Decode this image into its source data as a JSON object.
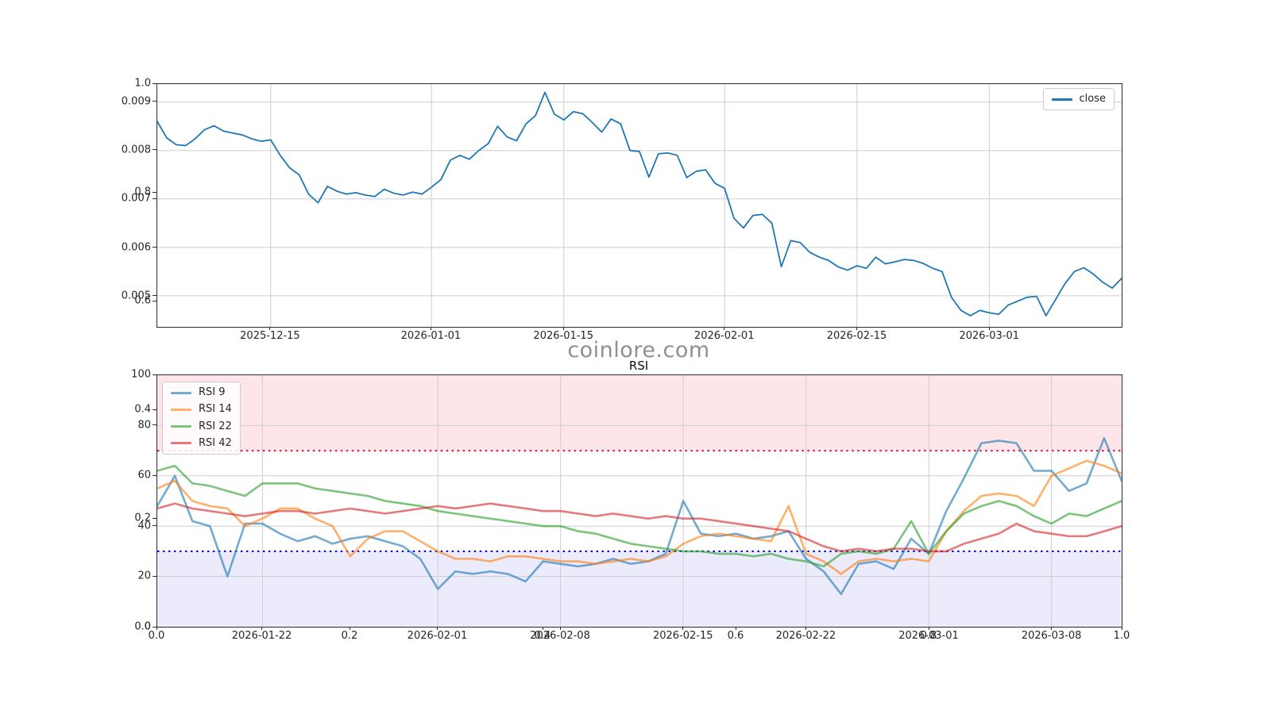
{
  "watermark": "coinlore.com",
  "figure_axis": {
    "left_tick_labels": [
      "1.0",
      "0.8",
      "0.6",
      "0.4",
      "0.2",
      "0.0"
    ],
    "bottom_tick_labels": [
      "0.0",
      "0.2",
      "0.4",
      "0.6",
      "0.8",
      "1.0"
    ]
  },
  "chart_data": [
    {
      "type": "line",
      "name": "price",
      "title": "",
      "legend_position": "upper right",
      "x_start": "2025-12-03",
      "x_end": "2026-03-14",
      "x_tick_labels": [
        "2025-12-15",
        "2026-01-01",
        "2026-01-15",
        "2026-02-01",
        "2026-02-15",
        "2026-03-01"
      ],
      "x_tick_day_index": [
        12,
        29,
        43,
        60,
        74,
        88
      ],
      "y_tick_labels": [
        "0.009",
        "0.008",
        "0.007",
        "0.006",
        "0.005"
      ],
      "y_tick_values": [
        0.009,
        0.008,
        0.007,
        0.006,
        0.005
      ],
      "ylim": [
        0.00436,
        0.00937
      ],
      "grid": true,
      "series": [
        {
          "name": "close",
          "color": "#1f77b4",
          "opacity": 1,
          "width": 1.8,
          "values": [
            0.0086,
            0.00826,
            0.00812,
            0.0081,
            0.00824,
            0.00843,
            0.00851,
            0.0084,
            0.00836,
            0.00832,
            0.00824,
            0.00819,
            0.00822,
            0.0079,
            0.00764,
            0.0075,
            0.0071,
            0.00692,
            0.00726,
            0.00716,
            0.0071,
            0.00713,
            0.00708,
            0.00705,
            0.0072,
            0.00712,
            0.00708,
            0.00714,
            0.0071,
            0.00724,
            0.0074,
            0.0078,
            0.0079,
            0.00782,
            0.008,
            0.00814,
            0.0085,
            0.00828,
            0.0082,
            0.00855,
            0.00872,
            0.0092,
            0.00875,
            0.00863,
            0.0088,
            0.00876,
            0.00858,
            0.00838,
            0.00865,
            0.00855,
            0.008,
            0.00798,
            0.00745,
            0.00793,
            0.00795,
            0.0079,
            0.00744,
            0.00757,
            0.0076,
            0.00732,
            0.00722,
            0.0066,
            0.0064,
            0.00666,
            0.00668,
            0.0065,
            0.0056,
            0.00614,
            0.0061,
            0.0059,
            0.0058,
            0.00573,
            0.0056,
            0.00553,
            0.00562,
            0.00557,
            0.0058,
            0.00566,
            0.0057,
            0.00575,
            0.00573,
            0.00567,
            0.00557,
            0.0055,
            0.00497,
            0.0047,
            0.00459,
            0.0047,
            0.00465,
            0.00462,
            0.00481,
            0.00489,
            0.00497,
            0.00499,
            0.00459,
            0.00492,
            0.00525,
            0.0055,
            0.00558,
            0.00545,
            0.00528,
            0.00516,
            0.00536
          ]
        }
      ]
    },
    {
      "type": "line",
      "name": "rsi",
      "title": "RSI",
      "legend_position": "upper left",
      "x_start": "2026-01-16",
      "x_end": "2026-03-12",
      "x_tick_labels": [
        "2026-01-22",
        "2026-02-01",
        "2026-02-08",
        "2026-02-15",
        "2026-02-22",
        "2026-03-01",
        "2026-03-08"
      ],
      "x_tick_day_index": [
        6,
        16,
        23,
        30,
        37,
        44,
        51
      ],
      "y_tick_labels": [
        "100",
        "80",
        "60",
        "40",
        "20",
        "0"
      ],
      "y_tick_values": [
        100,
        80,
        60,
        40,
        20,
        0
      ],
      "ylim": [
        0,
        100
      ],
      "grid": true,
      "overbought": {
        "level": 70,
        "line_color": "#e8112d",
        "band_color": "rgba(235,20,60,0.11)"
      },
      "oversold": {
        "level": 30,
        "line_color": "#0000d0",
        "band_color": "rgba(30,30,220,0.09)"
      },
      "series": [
        {
          "name": "RSI 9",
          "color": "#1f77b4",
          "opacity": 0.62,
          "width": 2.6,
          "values": [
            48,
            60,
            42,
            40,
            20,
            41,
            41,
            37,
            34,
            36,
            33,
            35,
            36,
            34,
            32,
            27,
            15,
            22,
            21,
            22,
            21,
            18,
            26,
            25,
            24,
            25,
            27,
            25,
            26,
            29,
            50,
            37,
            36,
            37,
            35,
            36,
            38,
            27,
            22,
            13,
            25,
            26,
            23,
            35,
            29,
            46,
            59,
            73,
            74,
            73,
            62,
            62,
            54,
            57,
            75,
            58
          ]
        },
        {
          "name": "RSI 14",
          "color": "#ff7f0e",
          "opacity": 0.62,
          "width": 2.6,
          "values": [
            55,
            58,
            50,
            48,
            47,
            40,
            43,
            47,
            47,
            43,
            40,
            28,
            35,
            38,
            38,
            34,
            30,
            27,
            27,
            26,
            28,
            28,
            27,
            26,
            26,
            25,
            26,
            27,
            26,
            28,
            33,
            36,
            37,
            36,
            35,
            34,
            48,
            29,
            26,
            21,
            26,
            27,
            26,
            27,
            26,
            38,
            46,
            52,
            53,
            52,
            48,
            60,
            63,
            66,
            64,
            61
          ]
        },
        {
          "name": "RSI 22",
          "color": "#2ca02c",
          "opacity": 0.62,
          "width": 2.6,
          "values": [
            62,
            64,
            57,
            56,
            54,
            52,
            57,
            57,
            57,
            55,
            54,
            53,
            52,
            50,
            49,
            48,
            46,
            45,
            44,
            43,
            42,
            41,
            40,
            40,
            38,
            37,
            35,
            33,
            32,
            31,
            30,
            30,
            29,
            29,
            28,
            29,
            27,
            26,
            24,
            29,
            30,
            29,
            31,
            42,
            29,
            38,
            45,
            48,
            50,
            48,
            44,
            41,
            45,
            44,
            47,
            50
          ]
        },
        {
          "name": "RSI 42",
          "color": "#d62728",
          "opacity": 0.62,
          "width": 2.6,
          "values": [
            47,
            49,
            47,
            46,
            45,
            44,
            45,
            46,
            46,
            45,
            46,
            47,
            46,
            45,
            46,
            47,
            48,
            47,
            48,
            49,
            48,
            47,
            46,
            46,
            45,
            44,
            45,
            44,
            43,
            44,
            43,
            43,
            42,
            41,
            40,
            39,
            38,
            35,
            32,
            30,
            31,
            30,
            31,
            31,
            30,
            30,
            33,
            35,
            37,
            41,
            38,
            37,
            36,
            36,
            38,
            40
          ]
        }
      ]
    }
  ]
}
